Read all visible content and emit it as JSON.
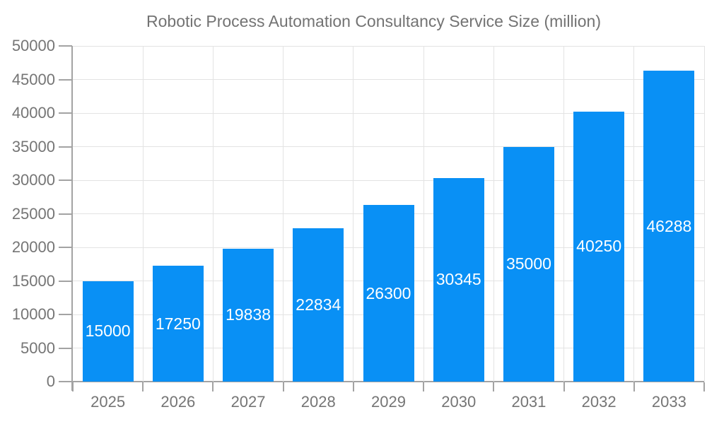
{
  "legend": {
    "label": "Robotic Process Automation Consultancy Service Size (million)"
  },
  "colors": {
    "bar": "#0990f5",
    "grid": "#e3e3e3",
    "axis": "#a3a3a3",
    "axis_text": "#757575",
    "title_text": "#737373",
    "value_text": "#ffffff",
    "background": "#ffffff"
  },
  "chart_data": {
    "type": "bar",
    "title": "Robotic Process Automation Consultancy Service Size (million)",
    "categories": [
      "2025",
      "2026",
      "2027",
      "2028",
      "2029",
      "2030",
      "2031",
      "2032",
      "2033"
    ],
    "values": [
      15000,
      17250,
      19838,
      22834,
      26300,
      30345,
      35000,
      40250,
      46288
    ],
    "value_labels": [
      "15000",
      "17250",
      "19838",
      "22834",
      "26300",
      "30345",
      "35000",
      "40250",
      "46288"
    ],
    "xlabel": "",
    "ylabel": "",
    "ylim": [
      0,
      50000
    ],
    "y_ticks": [
      0,
      5000,
      10000,
      15000,
      20000,
      25000,
      30000,
      35000,
      40000,
      45000,
      50000
    ],
    "grid": true,
    "legend_position": "top-left",
    "bar_color": "#0990f5",
    "value_label_position": "inside-center"
  }
}
